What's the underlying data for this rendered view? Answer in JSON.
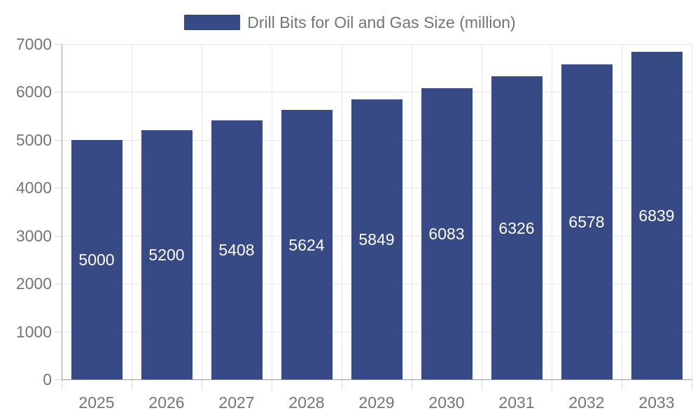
{
  "chart_data": {
    "type": "bar",
    "title": "Drill Bits for Oil and Gas Size (million)",
    "legend_entries": [
      "Drill Bits for Oil and Gas Size (million)"
    ],
    "legend_position": "top-center",
    "categories": [
      "2025",
      "2026",
      "2027",
      "2028",
      "2029",
      "2030",
      "2031",
      "2032",
      "2033"
    ],
    "values": [
      5000,
      5200,
      5408,
      5624,
      5849,
      6083,
      6326,
      6578,
      6839
    ],
    "bar_value_labels_visible": true,
    "xlabel": "",
    "ylabel": "",
    "ylim": [
      0,
      7000
    ],
    "y_ticks": [
      0,
      1000,
      2000,
      3000,
      4000,
      5000,
      6000,
      7000
    ],
    "grid": "horizontal and vertical light gridlines",
    "colors": {
      "bar": "#374A85",
      "bar_label": "#FFFFFF",
      "gridline": "#E5E7EC",
      "tick": "#D6DAE0",
      "axis_line": "#9A9DA2",
      "axis_text": "#757575",
      "legend_text": "#71757A",
      "background": "#FFFFFF"
    }
  }
}
